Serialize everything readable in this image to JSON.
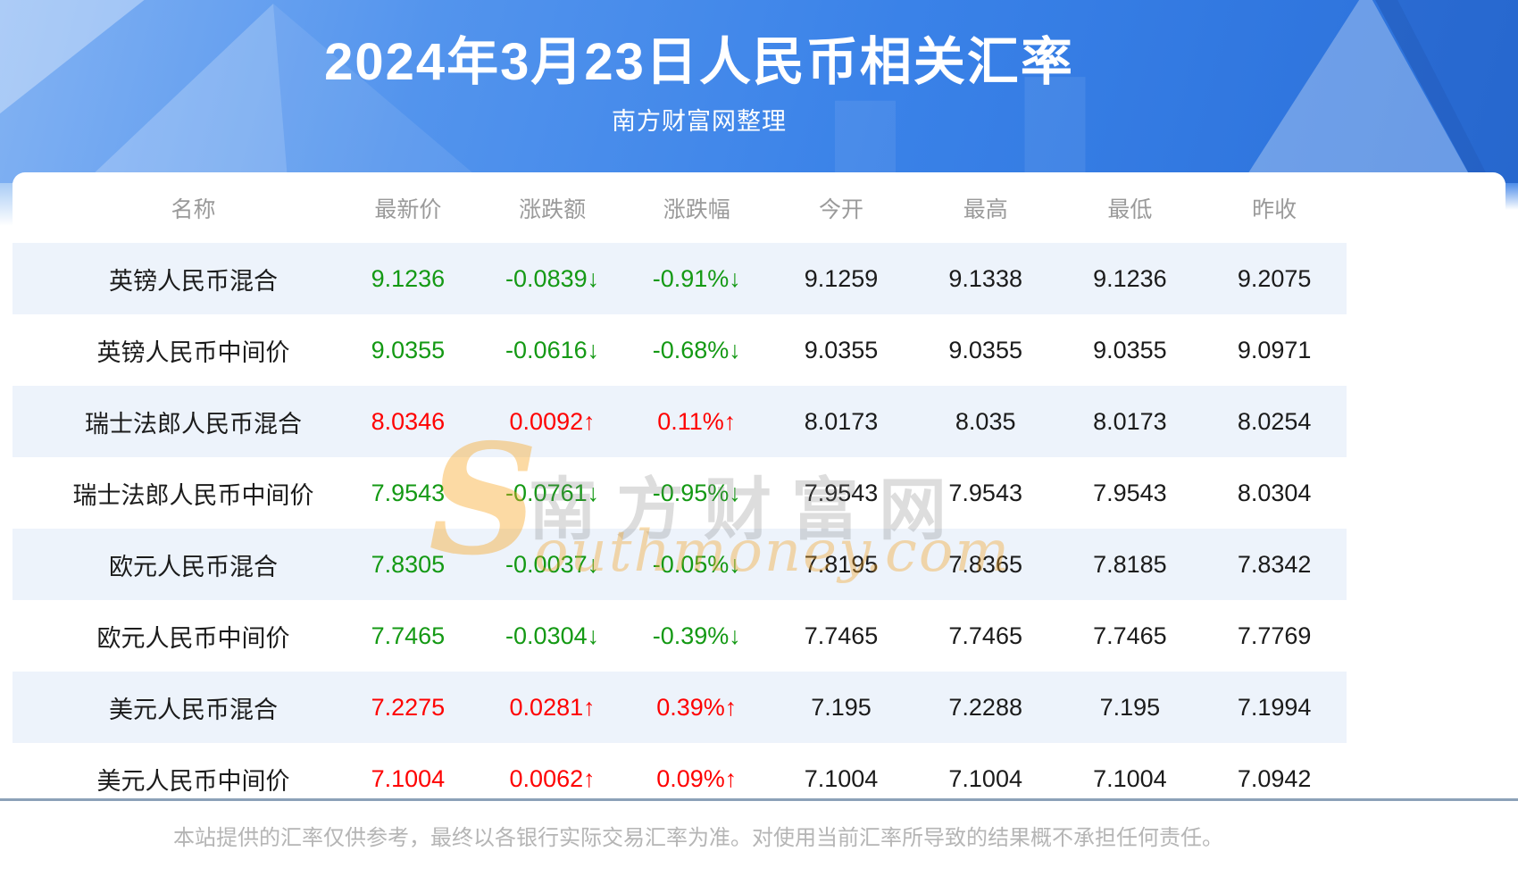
{
  "banner": {
    "title": "2024年3月23日人民币相关汇率",
    "subtitle": "南方财富网整理"
  },
  "table": {
    "columns": [
      "名称",
      "最新价",
      "涨跌额",
      "涨跌幅",
      "今开",
      "最高",
      "最低",
      "昨收"
    ],
    "rows": [
      {
        "name": "英镑人民币混合",
        "last": "9.1236",
        "change": "-0.0839↓",
        "pct": "-0.91%↓",
        "open": "9.1259",
        "high": "9.1338",
        "low": "9.1236",
        "prev": "9.2075",
        "dir": "down"
      },
      {
        "name": "英镑人民币中间价",
        "last": "9.0355",
        "change": "-0.0616↓",
        "pct": "-0.68%↓",
        "open": "9.0355",
        "high": "9.0355",
        "low": "9.0355",
        "prev": "9.0971",
        "dir": "down"
      },
      {
        "name": "瑞士法郎人民币混合",
        "last": "8.0346",
        "change": "0.0092↑",
        "pct": "0.11%↑",
        "open": "8.0173",
        "high": "8.035",
        "low": "8.0173",
        "prev": "8.0254",
        "dir": "up"
      },
      {
        "name": "瑞士法郎人民币中间价",
        "last": "7.9543",
        "change": "-0.0761↓",
        "pct": "-0.95%↓",
        "open": "7.9543",
        "high": "7.9543",
        "low": "7.9543",
        "prev": "8.0304",
        "dir": "down"
      },
      {
        "name": "欧元人民币混合",
        "last": "7.8305",
        "change": "-0.0037↓",
        "pct": "-0.05%↓",
        "open": "7.8195",
        "high": "7.8365",
        "low": "7.8185",
        "prev": "7.8342",
        "dir": "down"
      },
      {
        "name": "欧元人民币中间价",
        "last": "7.7465",
        "change": "-0.0304↓",
        "pct": "-0.39%↓",
        "open": "7.7465",
        "high": "7.7465",
        "low": "7.7465",
        "prev": "7.7769",
        "dir": "down"
      },
      {
        "name": "美元人民币混合",
        "last": "7.2275",
        "change": "0.0281↑",
        "pct": "0.39%↑",
        "open": "7.195",
        "high": "7.2288",
        "low": "7.195",
        "prev": "7.1994",
        "dir": "up"
      },
      {
        "name": "美元人民币中间价",
        "last": "7.1004",
        "change": "0.0062↑",
        "pct": "0.09%↑",
        "open": "7.1004",
        "high": "7.1004",
        "low": "7.1004",
        "prev": "7.0942",
        "dir": "up"
      }
    ]
  },
  "watermark": {
    "cn": "南方财富网",
    "en_initial": "S",
    "en_rest": "outhmoney.com"
  },
  "footer": {
    "disclaimer": "本站提供的汇率仅供参考，最终以各银行实际交易汇率为准。对使用当前汇率所导致的结果概不承担任何责任。"
  },
  "colors": {
    "up": "#fe0101",
    "down": "#149914",
    "row_alt": "#edf3fb",
    "banner_blue": "#3a82e8",
    "divider": "#8ca1b8"
  }
}
